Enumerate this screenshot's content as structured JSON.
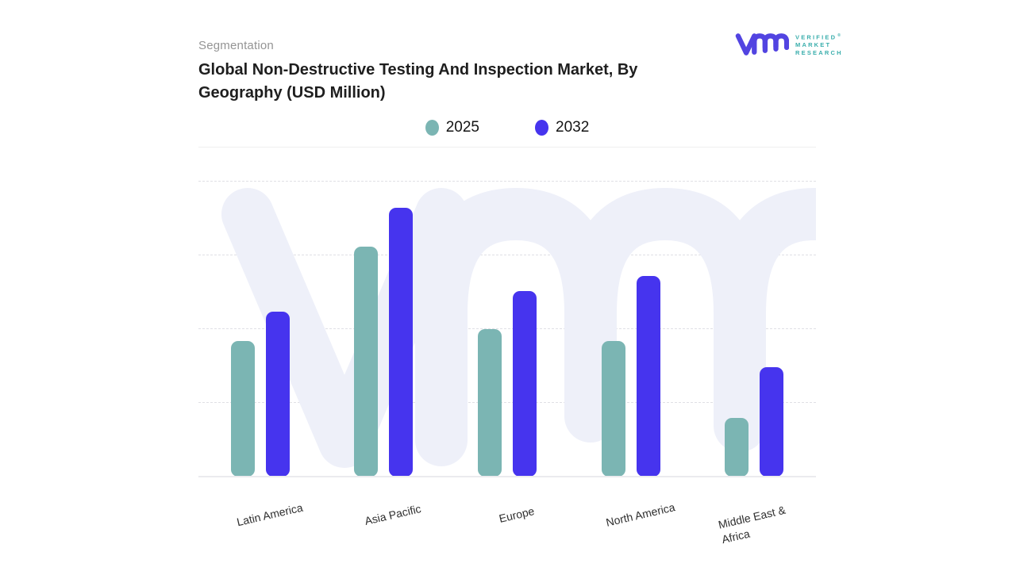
{
  "header": {
    "eyebrow": "Segmentation",
    "title": "Global Non-Destructive Testing And Inspection Market, By Geography (USD Million)"
  },
  "brand": {
    "name_lines": [
      "VERIFIED",
      "MARKET",
      "RESEARCH"
    ],
    "registered_mark": "®",
    "mark_color": "#5244e1",
    "text_color": "#3aaeac"
  },
  "legend": {
    "items": [
      {
        "label": "2025",
        "color": "#7bb5b3"
      },
      {
        "label": "2032",
        "color": "#4634ee"
      }
    ]
  },
  "chart_data": {
    "type": "bar",
    "title": "Global Non-Destructive Testing And Inspection Market, By Geography (USD Million)",
    "categories": [
      "Latin America",
      "Asia Pacific",
      "Europe",
      "North America",
      "Middle East & Africa"
    ],
    "series": [
      {
        "name": "2025",
        "color": "#7bb5b3",
        "values": [
          46,
          78,
          50,
          46,
          20
        ]
      },
      {
        "name": "2032",
        "color": "#4634ee",
        "values": [
          56,
          91,
          63,
          68,
          37
        ]
      }
    ],
    "xlabel": "",
    "ylabel": "",
    "ylim": [
      0,
      100
    ],
    "y_axis_tick_labels_shown": false,
    "grid": "horizontal-dashed",
    "legend_position": "top-center",
    "watermark_text": "vmr"
  }
}
